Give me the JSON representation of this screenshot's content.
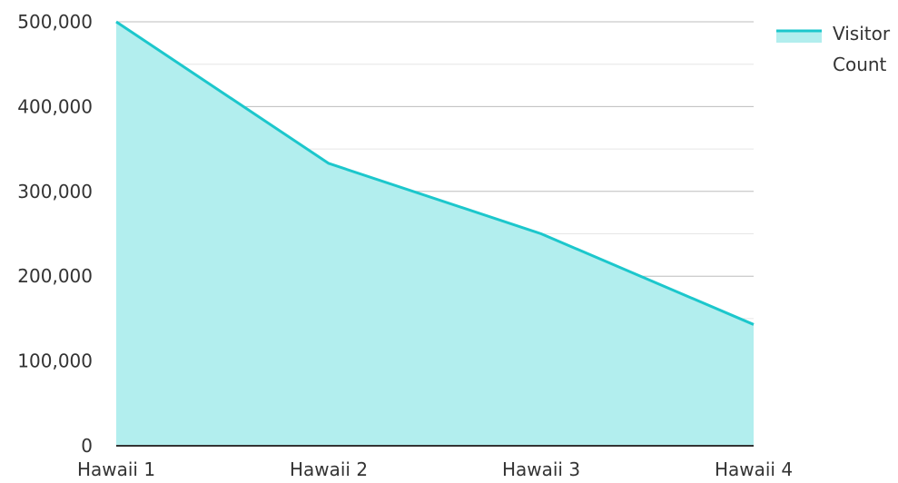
{
  "chart_data": {
    "type": "area",
    "categories": [
      "Hawaii 1",
      "Hawaii 2",
      "Hawaii 3",
      "Hawaii 4"
    ],
    "series": [
      {
        "name": "Visitor Count",
        "values": [
          500000,
          333000,
          250000,
          143000
        ]
      }
    ],
    "title": "",
    "xlabel": "",
    "ylabel": "",
    "ylim": [
      0,
      500000
    ],
    "y_ticks": [
      "0",
      "100,000",
      "200,000",
      "300,000",
      "400,000",
      "500,000"
    ],
    "legend": {
      "position": "top-right",
      "label_lines": [
        "Visitor",
        "Count"
      ]
    },
    "grid": true,
    "colors": {
      "line": "#1cc7cc",
      "fill": "#b2eeee",
      "grid_major": "#bdbdbd",
      "grid_minor": "#e6e6e6",
      "axis": "#333333",
      "text": "#333333"
    }
  }
}
